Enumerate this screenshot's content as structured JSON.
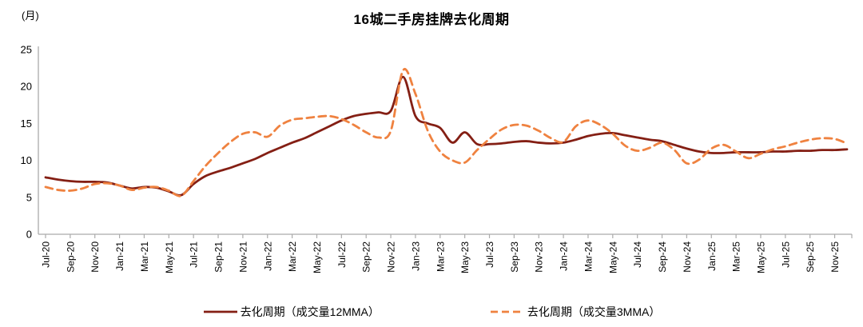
{
  "header": {
    "title": "16城二手房挂牌去化周期",
    "unit_label": "(月)"
  },
  "chart_data": {
    "type": "line",
    "title": "16城二手房挂牌去化周期",
    "ylabel": "月",
    "xlabel": "",
    "ylim": [
      0,
      25
    ],
    "yticks": [
      0,
      5,
      10,
      15,
      20,
      25
    ],
    "grid": false,
    "legend_position": "bottom",
    "x_frequency": "monthly",
    "x_start": "Jul-20",
    "x_end": "Dec-25",
    "x_tick_every_n_points": 2,
    "x_tick_labels": [
      "Jul-20",
      "Sep-20",
      "Nov-20",
      "Jan-21",
      "Mar-21",
      "May-21",
      "Jul-21",
      "Sep-21",
      "Nov-21",
      "Jan-22",
      "Mar-22",
      "May-22",
      "Jul-22",
      "Sep-22",
      "Nov-22",
      "Jan-23",
      "Mar-23",
      "May-23",
      "Jul-23",
      "Sep-23",
      "Nov-23",
      "Jan-24",
      "Mar-24",
      "May-24",
      "Jul-24",
      "Sep-24",
      "Nov-24",
      "Jan-25",
      "Mar-25",
      "May-25",
      "Jul-25",
      "Sep-25",
      "Nov-25"
    ],
    "series": [
      {
        "name": "去化周期（成交量12MMA）",
        "style": "solid",
        "color": "#841F14",
        "values": [
          7.7,
          7.4,
          7.2,
          7.1,
          7.1,
          7.0,
          6.6,
          6.2,
          6.4,
          6.3,
          5.8,
          5.3,
          6.8,
          7.9,
          8.5,
          9.0,
          9.6,
          10.2,
          11.0,
          11.7,
          12.4,
          13.0,
          13.8,
          14.6,
          15.4,
          16.0,
          16.3,
          16.5,
          16.7,
          21.3,
          16.0,
          15.0,
          14.4,
          12.4,
          13.8,
          12.2,
          12.2,
          12.3,
          12.5,
          12.6,
          12.4,
          12.3,
          12.4,
          12.8,
          13.3,
          13.6,
          13.7,
          13.4,
          13.1,
          12.8,
          12.6,
          12.1,
          11.6,
          11.2,
          11.0,
          11.0,
          11.1,
          11.1,
          11.1,
          11.2,
          11.2,
          11.3,
          11.3,
          11.4,
          11.4,
          11.5
        ]
      },
      {
        "name": "去化周期（成交量3MMA）",
        "style": "dashed",
        "color": "#EF8240",
        "values": [
          6.4,
          6.0,
          5.9,
          6.2,
          6.8,
          6.9,
          6.6,
          6.0,
          6.3,
          6.4,
          5.9,
          5.2,
          7.2,
          9.3,
          11.0,
          12.5,
          13.6,
          13.8,
          13.2,
          14.7,
          15.5,
          15.7,
          15.9,
          16.0,
          15.6,
          14.8,
          13.8,
          13.1,
          14.0,
          22.2,
          19.0,
          14.0,
          11.2,
          10.0,
          9.7,
          11.4,
          12.9,
          14.2,
          14.8,
          14.7,
          14.0,
          13.0,
          12.5,
          14.6,
          15.4,
          14.8,
          13.6,
          12.0,
          11.3,
          11.7,
          12.4,
          11.4,
          9.6,
          10.1,
          11.6,
          12.1,
          11.2,
          10.3,
          10.9,
          11.5,
          11.9,
          12.4,
          12.8,
          13.0,
          12.9,
          12.3
        ]
      }
    ],
    "axis_color": "#ABABAB",
    "label_color": "#000000"
  }
}
